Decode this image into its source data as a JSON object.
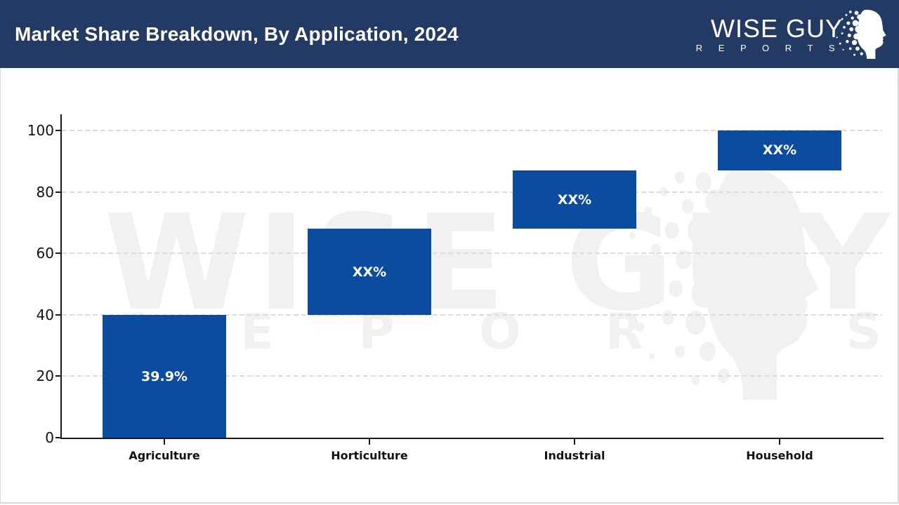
{
  "header": {
    "title": "Market Share Breakdown, By Application, 2024",
    "bg_color": "#233a64",
    "logo": {
      "line1": "WISE GUY",
      "line2": "R E P O R T S",
      "face_icon": "wiseguy-face-icon",
      "color": "#ffffff"
    }
  },
  "watermark": {
    "line1": "WISE GUY",
    "line2": "R E P O R T S",
    "color": "#f1f1f1"
  },
  "chart_data": {
    "type": "bar",
    "subtype": "waterfall",
    "title": "Market Share Breakdown, By Application, 2024",
    "categories": [
      "Agriculture",
      "Horticulture",
      "Industrial",
      "Household"
    ],
    "segments": [
      {
        "category": "Agriculture",
        "start": 0,
        "end": 39.9,
        "label": "39.9%"
      },
      {
        "category": "Horticulture",
        "start": 39.9,
        "end": 68,
        "label": "XX%"
      },
      {
        "category": "Industrial",
        "start": 68,
        "end": 87,
        "label": "XX%"
      },
      {
        "category": "Household",
        "start": 87,
        "end": 100,
        "label": "XX%"
      }
    ],
    "ylim": [
      0,
      100
    ],
    "yticks": [
      0,
      20,
      40,
      60,
      80,
      100
    ],
    "xlabel": "",
    "ylabel": "",
    "grid": "horizontal-dashed",
    "legend": "none",
    "bar_color": "#0c4c9e",
    "bar_label_color": "#ffffff",
    "grid_color": "#dcdcdc",
    "axis_color": "#1a1a1a",
    "tick_label_color": "#111111"
  }
}
